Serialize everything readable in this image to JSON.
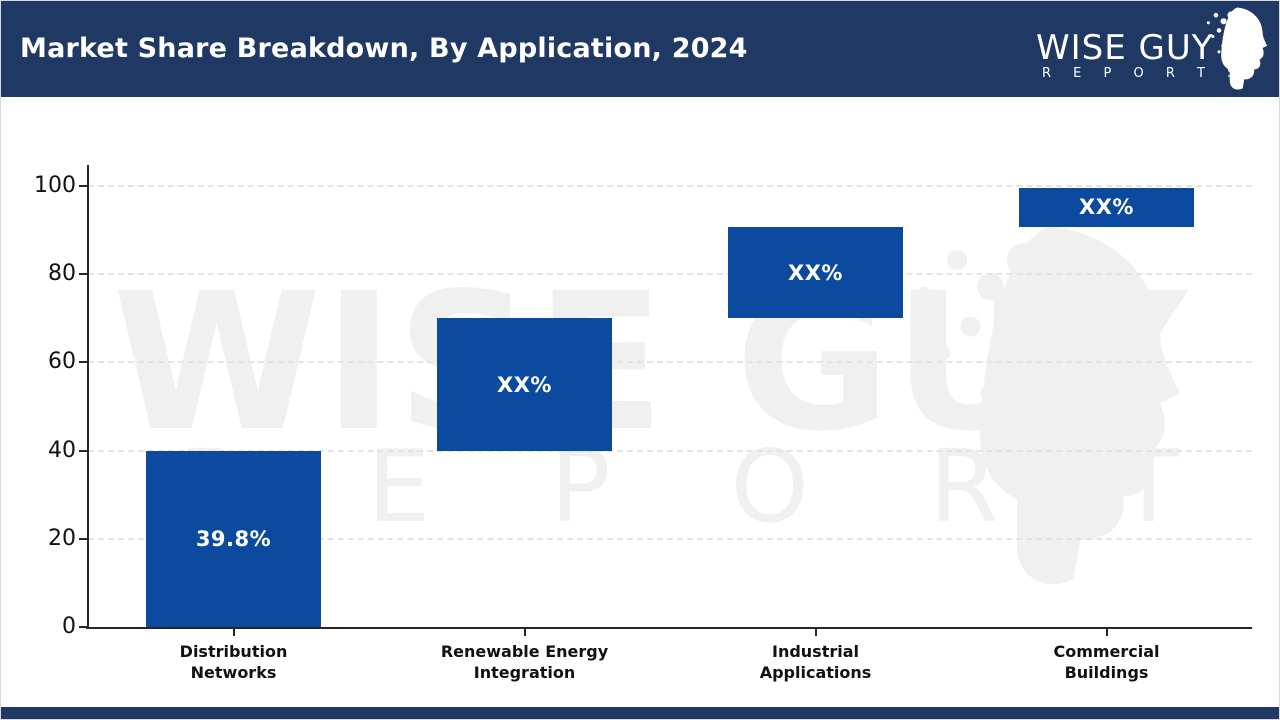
{
  "header": {
    "title": "Market Share Breakdown, By Application, 2024",
    "logo": {
      "name": "WISE GUY",
      "sub": "R E P O R T S"
    }
  },
  "watermark": {
    "big": "WISE GUY",
    "sub": "R E P O R T S"
  },
  "footer": {},
  "colors": {
    "header_bg": "#1f3864",
    "bar": "#0b4a9e",
    "grid": "#e4e4e4",
    "axis": "#262626",
    "watermark": "#f0f0f0",
    "bar_label": "#ffffff"
  },
  "chart_data": {
    "type": "bar",
    "subtype": "floating-segment-breakdown",
    "title": "Market Share Breakdown, By Application, 2024",
    "ylim": [
      0,
      100
    ],
    "yticks": [
      0,
      20,
      40,
      60,
      80,
      100
    ],
    "grid": "horizontal-dashed",
    "legend": "none",
    "xlabel": "",
    "ylabel": "",
    "categories": [
      "Distribution\nNetworks",
      "Renewable Energy\nIntegration",
      "Industrial\nApplications",
      "Commercial\nBuildings"
    ],
    "segments": [
      {
        "category": "Distribution Networks",
        "start": 0,
        "end": 39.8,
        "label": "39.8%"
      },
      {
        "category": "Renewable Energy Integration",
        "start": 39.8,
        "end": 70,
        "label": "XX%"
      },
      {
        "category": "Industrial Applications",
        "start": 70,
        "end": 90.7,
        "label": "XX%"
      },
      {
        "category": "Commercial Buildings",
        "start": 90.7,
        "end": 99.6,
        "label": "XX%"
      }
    ]
  }
}
